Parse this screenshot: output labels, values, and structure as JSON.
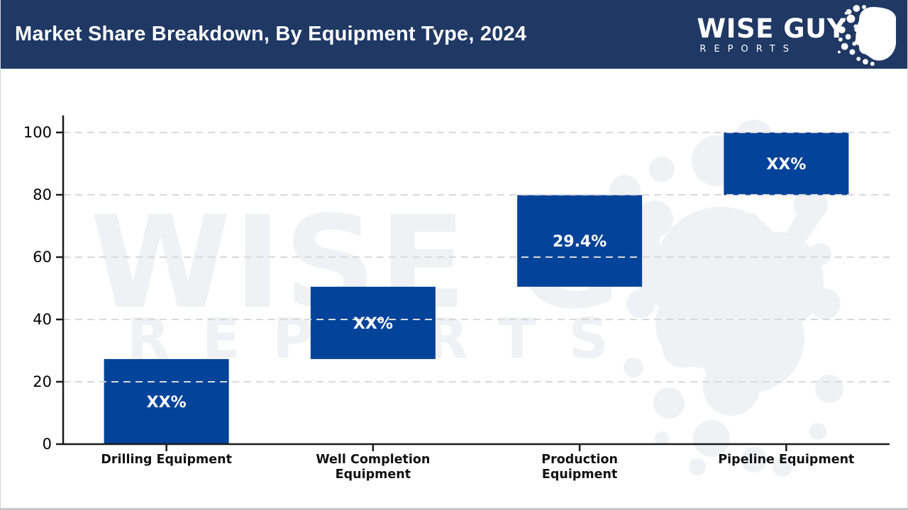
{
  "header": {
    "title": "Market Share Breakdown, By Equipment Type, 2024",
    "logo": {
      "name": "WISE GUY",
      "subtitle": "REPORTS"
    },
    "bg_color": "#1f3864"
  },
  "watermark": {
    "line1": "WISE GUY",
    "line2": "REPORTS"
  },
  "chart_data": {
    "type": "bar",
    "variant": "waterfall-floating-bars",
    "title": "Market Share Breakdown, By Equipment Type, 2024",
    "categories": [
      "Drilling Equipment",
      "Well Completion Equipment",
      "Production Equipment",
      "Pipeline Equipment"
    ],
    "category_label_lines": [
      [
        "Drilling Equipment"
      ],
      [
        "Well Completion",
        "Equipment"
      ],
      [
        "Production",
        "Equipment"
      ],
      [
        "Pipeline Equipment"
      ]
    ],
    "segments": [
      {
        "category": "Drilling Equipment",
        "from": 0,
        "to": 27.3,
        "label": "XX%"
      },
      {
        "category": "Well Completion Equipment",
        "from": 27.3,
        "to": 50.5,
        "label": "XX%"
      },
      {
        "category": "Production Equipment",
        "from": 50.5,
        "to": 79.9,
        "label": "29.4%"
      },
      {
        "category": "Pipeline Equipment",
        "from": 79.9,
        "to": 100,
        "label": "XX%"
      }
    ],
    "ylabel": "",
    "xlabel": "",
    "yticks": [
      0,
      20,
      40,
      60,
      80,
      100
    ],
    "ylim": [
      0,
      105
    ],
    "grid": "horizontal-dashed",
    "legend": "none",
    "bar_color": "#04439a",
    "bar_label_color": "#ffffff"
  }
}
